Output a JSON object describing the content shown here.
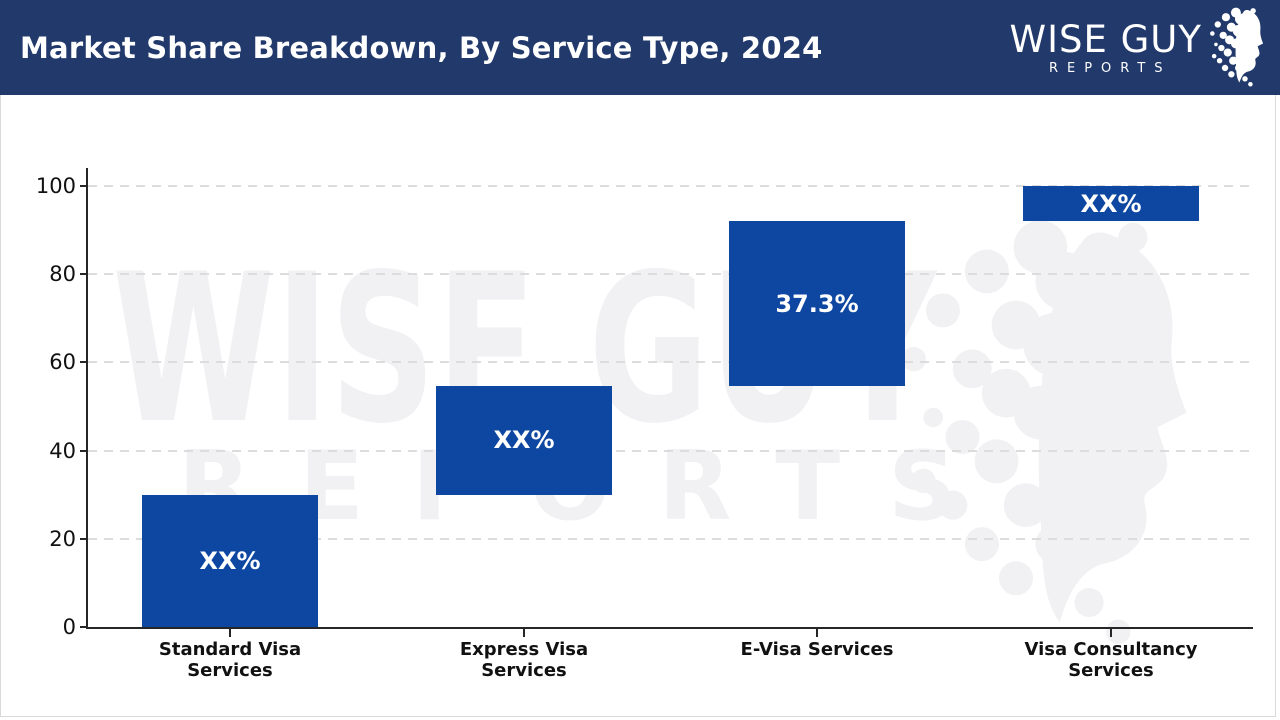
{
  "header": {
    "title": "Market Share Breakdown, By Service Type, 2024",
    "logo": {
      "name": "WISE GUY",
      "tagline": "REPORTS"
    }
  },
  "watermark": {
    "line1": "WISE GUY",
    "line2": "REPORTS"
  },
  "chart_data": {
    "type": "bar",
    "subtype": "floating-segment-breakdown",
    "title": "Market Share Breakdown, By Service Type, 2024",
    "xlabel": "",
    "ylabel": "",
    "ylim": [
      0,
      100
    ],
    "yticks": [
      0,
      20,
      40,
      60,
      80,
      100
    ],
    "grid": "horizontal-dashed",
    "legend": "none",
    "categories": [
      {
        "name": "Standard Visa Services",
        "lines": [
          "Standard Visa",
          "Services"
        ]
      },
      {
        "name": "Express Visa Services",
        "lines": [
          "Express Visa",
          "Services"
        ]
      },
      {
        "name": "E-Visa Services",
        "lines": [
          "E-Visa Services"
        ]
      },
      {
        "name": "Visa Consultancy Services",
        "lines": [
          "Visa Consultancy",
          "Services"
        ]
      }
    ],
    "segments": [
      {
        "category": "Standard Visa Services",
        "base": 0,
        "top": 30,
        "height": 30,
        "label": "XX%"
      },
      {
        "category": "Express Visa Services",
        "base": 30,
        "top": 54.7,
        "height": 24.7,
        "label": "XX%"
      },
      {
        "category": "E-Visa Services",
        "base": 54.7,
        "top": 92,
        "height": 37.3,
        "label": "37.3%"
      },
      {
        "category": "Visa Consultancy Services",
        "base": 92,
        "top": 100,
        "height": 8,
        "label": "XX%"
      }
    ],
    "bar_color": "#0d47a1",
    "bar_label_color": "#ffffff"
  },
  "colors": {
    "header_bg": "#22396b",
    "header_text": "#ffffff",
    "bar": "#0d47a1",
    "bar_label": "#ffffff",
    "grid_line": "#dcdcdc",
    "axis_line": "#262626",
    "tick_text": "#111111",
    "watermark": "#f1f1f4",
    "frame_border": "#d9d9d9"
  }
}
